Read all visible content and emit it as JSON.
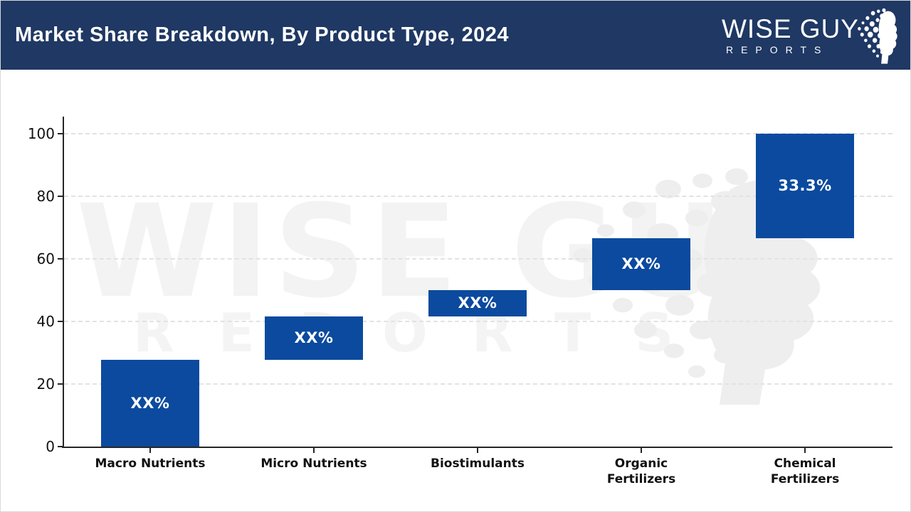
{
  "header": {
    "title": "Market Share Breakdown, By Product Type, 2024",
    "background_color": "#1f3864",
    "logo": {
      "brand_line1": "WISE GUY",
      "brand_line2": "REPORTS"
    }
  },
  "watermark": {
    "line1": "WISE GUY",
    "line2": "REPORTS"
  },
  "chart_data": {
    "type": "bar",
    "subtype": "waterfall",
    "title": "Market Share Breakdown, By Product Type, 2024",
    "categories": [
      "Macro Nutrients",
      "Micro Nutrients",
      "Biostimulants",
      "Organic\nFertilizers",
      "Chemical\nFertilizers"
    ],
    "segments": [
      {
        "category": "Macro Nutrients",
        "start": 0,
        "end": 27.7,
        "value": 27.7,
        "label": "XX%"
      },
      {
        "category": "Micro Nutrients",
        "start": 27.7,
        "end": 41.7,
        "value": 14.0,
        "label": "XX%"
      },
      {
        "category": "Biostimulants",
        "start": 41.7,
        "end": 50.0,
        "value": 8.3,
        "label": "XX%"
      },
      {
        "category": "Organic Fertilizers",
        "start": 50.0,
        "end": 66.7,
        "value": 16.7,
        "label": "XX%"
      },
      {
        "category": "Chemical Fertilizers",
        "start": 66.7,
        "end": 100.0,
        "value": 33.3,
        "label": "33.3%"
      }
    ],
    "y_ticks": [
      0,
      20,
      40,
      60,
      80,
      100
    ],
    "ylim": [
      0,
      105
    ],
    "xlabel": "",
    "ylabel": "",
    "grid": "horizontal-dashed",
    "legend": "none",
    "bar_color": "#0b4a9e",
    "bar_label_color": "#ffffff",
    "axis_color": "#262626"
  }
}
